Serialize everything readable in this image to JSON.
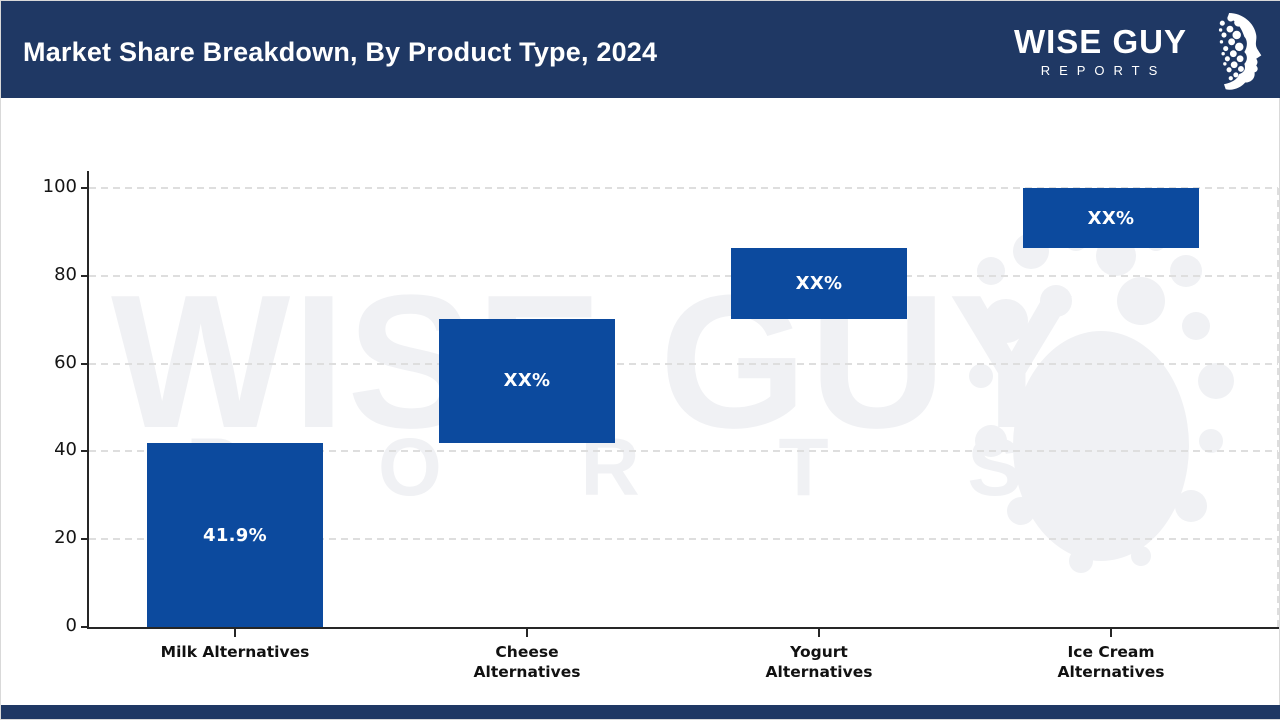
{
  "header": {
    "title": "Market Share Breakdown, By Product Type, 2024",
    "logo": {
      "name": "WISE GUY",
      "sub": "REPORTS"
    }
  },
  "watermark": {
    "line1": "WISE GUY",
    "line2": "P O R T S"
  },
  "colors": {
    "header_bg": "#1f3864",
    "bar_blue": "#0c4a9e",
    "watermark_gray": "#f0f1f4",
    "grid_gray": "#dedede",
    "axis_dark": "#262626"
  },
  "chart_data": {
    "type": "bar",
    "subtype": "waterfall",
    "title": "Market Share Breakdown, By Product Type, 2024",
    "categories": [
      "Milk Alternatives",
      "Cheese Alternatives",
      "Yogurt Alternatives",
      "Ice Cream Alternatives"
    ],
    "category_display_lines": [
      [
        "Milk Alternatives"
      ],
      [
        "Cheese",
        "Alternatives"
      ],
      [
        "Yogurt",
        "Alternatives"
      ],
      [
        "Ice Cream",
        "Alternatives"
      ]
    ],
    "segments": [
      {
        "category": "Milk Alternatives",
        "start": 0,
        "end": 41.9,
        "value": 41.9,
        "label": "41.9%"
      },
      {
        "category": "Cheese Alternatives",
        "start": 41.9,
        "end": 70.2,
        "value": 28.3,
        "label": "XX%"
      },
      {
        "category": "Yogurt Alternatives",
        "start": 70.2,
        "end": 86.3,
        "value": 16.1,
        "label": "XX%"
      },
      {
        "category": "Ice Cream Alternatives",
        "start": 86.3,
        "end": 100,
        "value": 13.7,
        "label": "XX%"
      }
    ],
    "values": [
      41.9,
      28.3,
      16.1,
      13.7
    ],
    "value_labels": [
      "41.9%",
      "XX%",
      "XX%",
      "XX%"
    ],
    "xlabel": "",
    "ylabel": "",
    "ylim": [
      0,
      100
    ],
    "yticks": [
      0,
      20,
      40,
      60,
      80,
      100
    ],
    "grid": "horizontal dashed",
    "legend": "none",
    "bar_color": "#0c4a9e",
    "bar_label_color": "#ffffff"
  }
}
